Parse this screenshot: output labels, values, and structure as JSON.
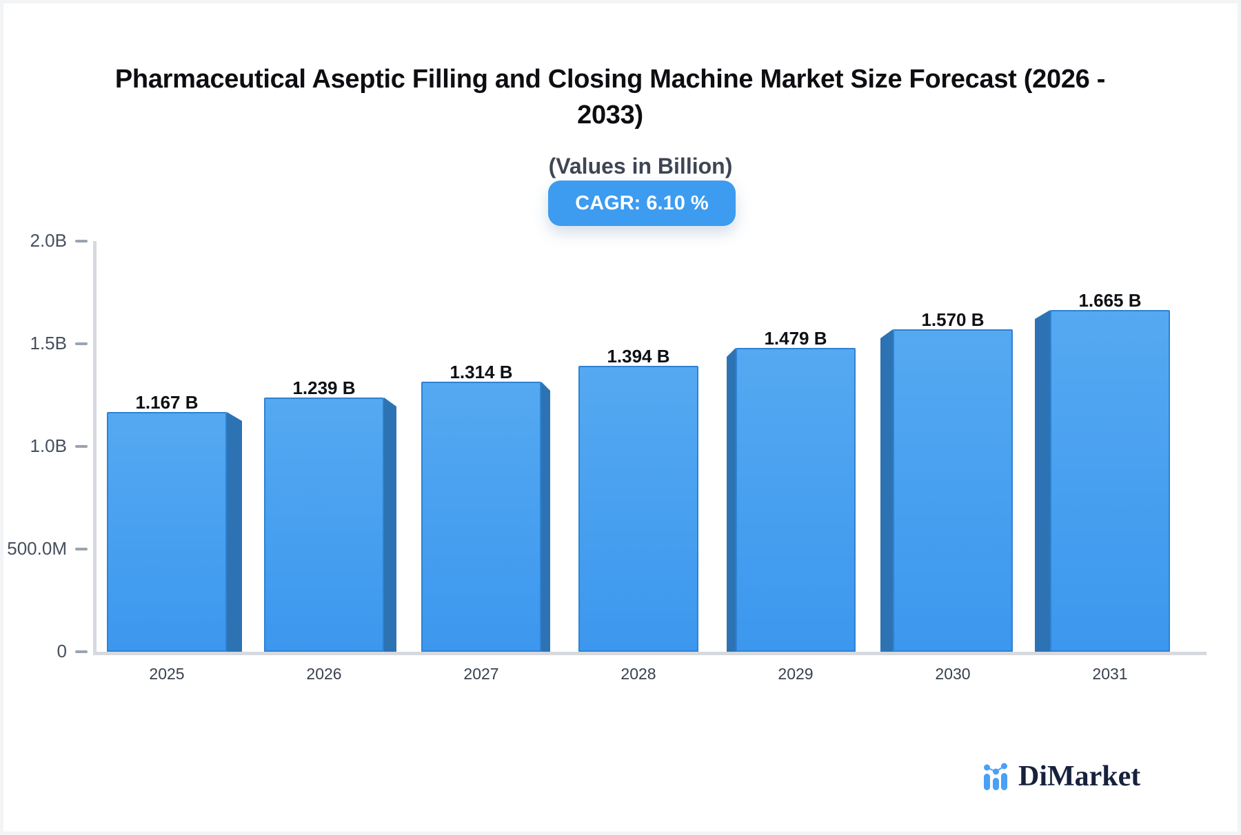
{
  "header": {
    "title": "Pharmaceutical Aseptic Filling and Closing Machine Market Size Forecast (2026 - 2033)",
    "title_line1": "Pharmaceutical Aseptic Filling and Closing Machine Market Size Forecast (2026 -",
    "title_line2": "2033)",
    "subtitle": "(Values in Billion)",
    "cagr_badge": "CAGR: 6.10 %"
  },
  "chart_data": {
    "type": "bar",
    "title": "Pharmaceutical Aseptic Filling and Closing Machine Market Size Forecast (2026 - 2033)",
    "subtitle": "(Values in Billion)",
    "cagr_pct": 6.1,
    "unit": "Billion",
    "categories": [
      "2025",
      "2026",
      "2027",
      "2028",
      "2029",
      "2030",
      "2031"
    ],
    "values": [
      1.167,
      1.239,
      1.314,
      1.394,
      1.479,
      1.57,
      1.665
    ],
    "value_labels": [
      "1.167 B",
      "1.239 B",
      "1.314 B",
      "1.394 B",
      "1.479 B",
      "1.570 B",
      "1.665 B"
    ],
    "xlabel": "",
    "ylabel": "",
    "ylim": [
      0,
      2.0
    ],
    "yticks": [
      {
        "value": 0,
        "label": "0"
      },
      {
        "value": 0.5,
        "label": "500.0M"
      },
      {
        "value": 1.0,
        "label": "1.0B"
      },
      {
        "value": 1.5,
        "label": "1.5B"
      },
      {
        "value": 2.0,
        "label": "2.0B"
      }
    ],
    "grid": false,
    "legend": false,
    "bar_style": "3d-perspective-toward-center"
  },
  "colors": {
    "frame": "#f3f4f6",
    "card_bg": "#ffffff",
    "title": "#0d0e12",
    "subtitle": "#3e4653",
    "badge_bg": "#3d9bf0",
    "badge_text": "#ffffff",
    "bar_top": "#55a9f1",
    "bar_bottom": "#3c97ee",
    "bar_side": "#2d73b4",
    "bar_border": "#2f82d2",
    "axis": "#d6d9de",
    "tick": "#9ba3ae",
    "y_label": "#454f5d",
    "x_label": "#38414e",
    "value_label": "#0d1015",
    "logo_text": "#16223c",
    "logo_accent": "#4aa0f5"
  },
  "logo": {
    "text": "DiMarket",
    "icon": "bar-chart-logo-icon"
  }
}
